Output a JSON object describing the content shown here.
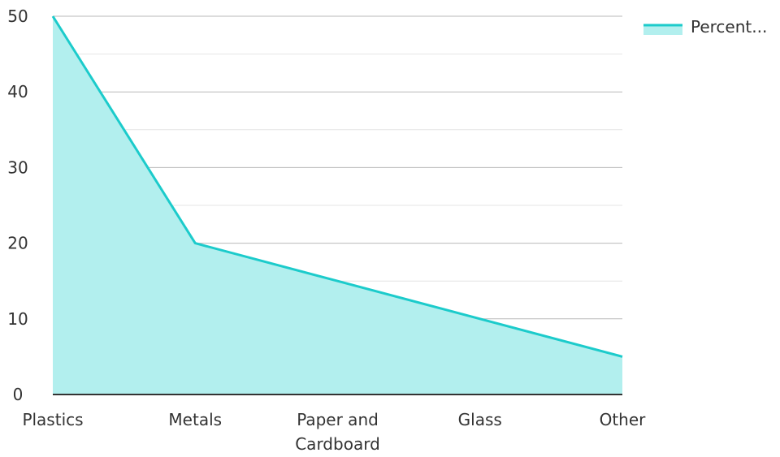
{
  "chart_data": {
    "type": "area",
    "title": "",
    "xlabel": "",
    "ylabel": "",
    "categories": [
      "Plastics",
      "Metals",
      "Paper and Cardboard",
      "Glass",
      "Other"
    ],
    "category_lines": [
      [
        "Plastics"
      ],
      [
        "Metals"
      ],
      [
        "Paper and",
        "Cardboard"
      ],
      [
        "Glass"
      ],
      [
        "Other"
      ]
    ],
    "series": [
      {
        "name": "Percent...",
        "values": [
          50,
          20,
          15,
          10,
          5
        ]
      }
    ],
    "ylim": [
      0,
      50
    ],
    "y_ticks": [
      0,
      10,
      20,
      30,
      40,
      50
    ],
    "grid": true,
    "legend_position": "top-right",
    "colors": {
      "line": "#1ccbcb",
      "fill": "#b2efee",
      "grid_major": "#b9b9b9",
      "grid_minor": "#e4e4e4",
      "axis": "#333333"
    }
  }
}
